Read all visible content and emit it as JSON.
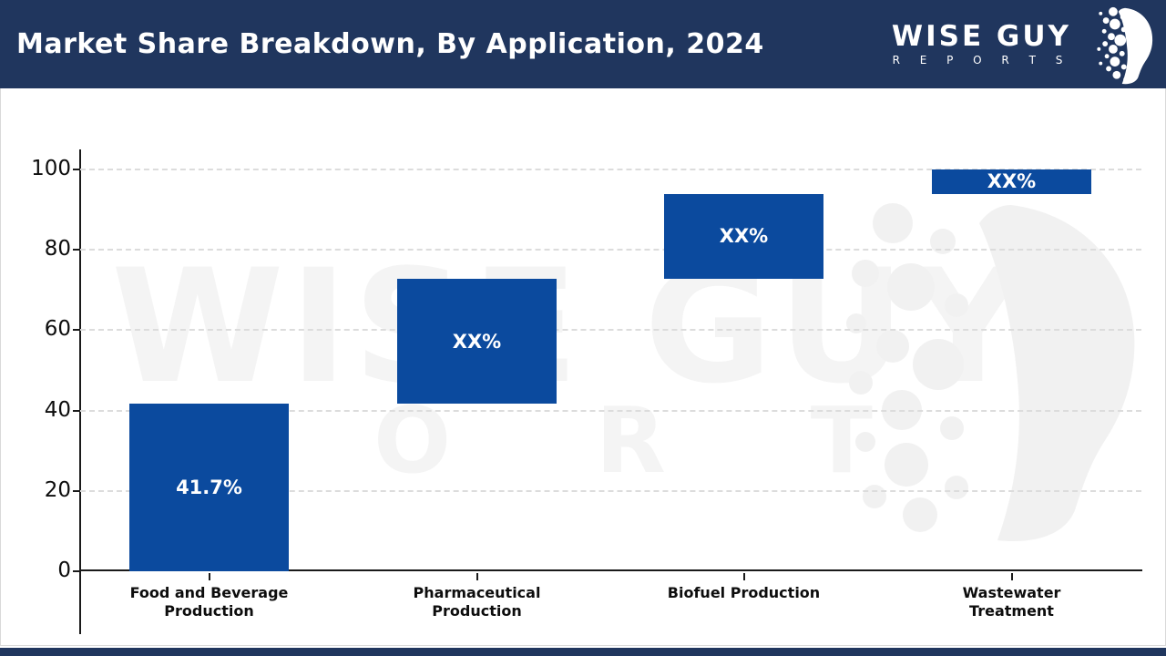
{
  "header": {
    "title": "Market Share Breakdown, By Application, 2024",
    "logo": {
      "line1": "WISE GUY",
      "line2": "R E P O R T S"
    }
  },
  "watermark": {
    "line1": "WISE GUY",
    "line2": "P O R T S"
  },
  "chart_data": {
    "type": "bar",
    "subtype": "waterfall",
    "title": "Market Share Breakdown, By Application, 2024",
    "categories": [
      "Food and Beverage Production",
      "Pharmaceutical Production",
      "Biofuel Production",
      "Wastewater Treatment"
    ],
    "category_lines": [
      [
        "Food and Beverage",
        "Production"
      ],
      [
        "Pharmaceutical",
        "Production"
      ],
      [
        "Biofuel Production"
      ],
      [
        "Wastewater",
        "Treatment"
      ]
    ],
    "segments": [
      {
        "start": 0,
        "end": 41.7,
        "label": "41.7%"
      },
      {
        "start": 41.7,
        "end": 72.8,
        "label": "XX%"
      },
      {
        "start": 72.8,
        "end": 93.9,
        "label": "XX%"
      },
      {
        "start": 93.9,
        "end": 100,
        "label": "XX%"
      }
    ],
    "ylim": [
      0,
      100
    ],
    "yticks": [
      0,
      20,
      40,
      60,
      80,
      100
    ],
    "xlabel": "",
    "ylabel": "",
    "grid": "horizontal-dashed",
    "legend": "none"
  },
  "colors": {
    "header_bg": "#20365e",
    "bar": "#0b4a9e",
    "bar_label": "#ffffff",
    "grid": "#dcdcdc",
    "axis": "#1a1a1a",
    "watermark": "#f4f4f4",
    "frame": "#d9d9d9"
  }
}
